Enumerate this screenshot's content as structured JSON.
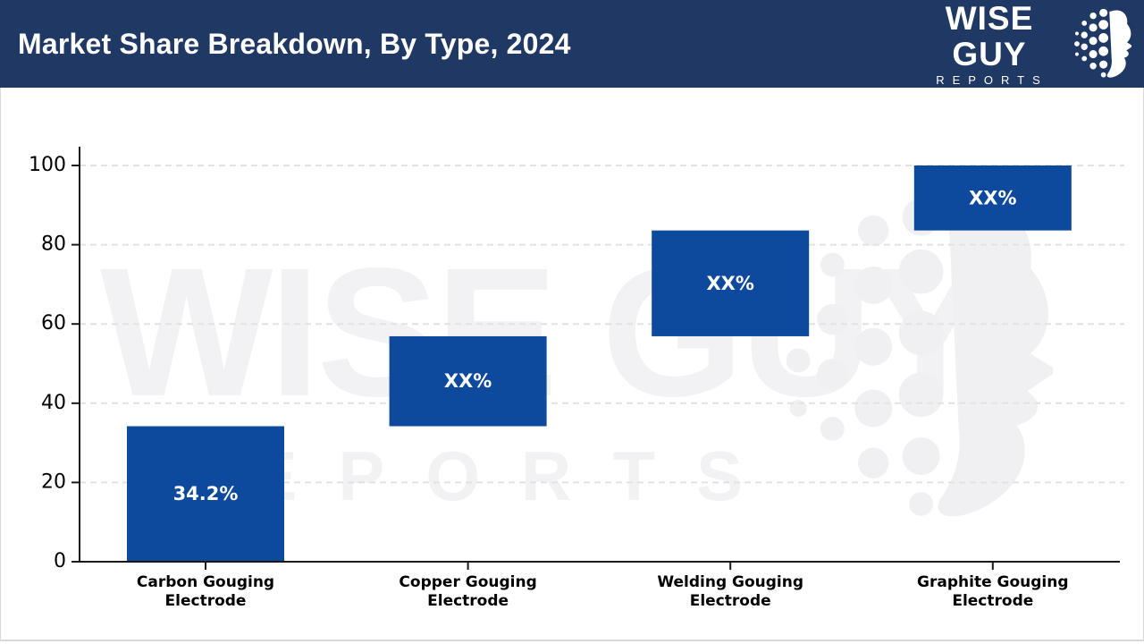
{
  "header": {
    "title": "Market Share Breakdown, By Type, 2024",
    "brand": {
      "line1": "WISE GUY",
      "line2": "REPORTS"
    }
  },
  "watermark": {
    "line1": "WISE GUY",
    "line2": "REPORTS"
  },
  "colors": {
    "header_bg": "#1f3864",
    "bar": "#0d4a9d",
    "bar_label": "#ffffff",
    "axis": "#1a1a1a",
    "grid": "#e2e2e2",
    "watermark": "#f2f2f4",
    "tick_label": "#000000"
  },
  "chart_data": {
    "type": "bar",
    "variant": "waterfall",
    "title": "Market Share Breakdown, By Type, 2024",
    "categories": [
      {
        "line1": "Carbon Gouging",
        "line2": "Electrode"
      },
      {
        "line1": "Copper Gouging",
        "line2": "Electrode"
      },
      {
        "line1": "Welding Gouging",
        "line2": "Electrode"
      },
      {
        "line1": "Graphite Gouging",
        "line2": "Electrode"
      }
    ],
    "segments": [
      {
        "start": 0,
        "end": 34.2,
        "label": "34.2%"
      },
      {
        "start": 34.2,
        "end": 56.9,
        "label": "XX%"
      },
      {
        "start": 56.9,
        "end": 83.6,
        "label": "XX%"
      },
      {
        "start": 83.6,
        "end": 100,
        "label": "XX%"
      }
    ],
    "yticks": [
      0,
      20,
      40,
      60,
      80,
      100
    ],
    "ylim": [
      0,
      104.5
    ],
    "xlabel": "",
    "ylabel": "",
    "grid": "horizontal-dashed",
    "legend": "none",
    "bar_color": "#0d4a9d",
    "bar_label_color": "#ffffff",
    "axis_color": "#1a1a1a",
    "grid_color": "#e2e2e2"
  }
}
